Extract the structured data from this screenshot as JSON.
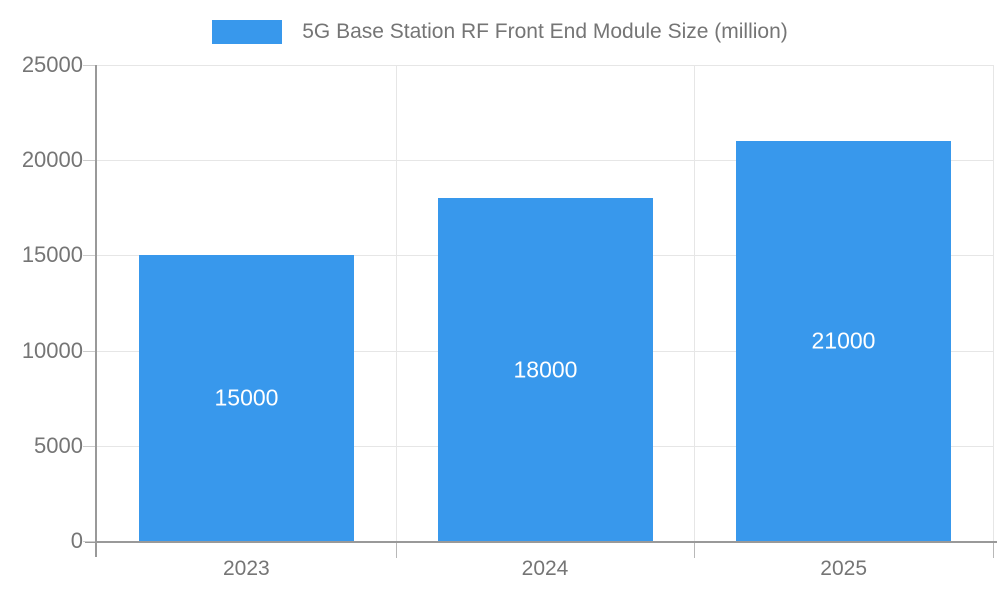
{
  "legend": {
    "label": "5G Base Station RF Front End Module Size (million)"
  },
  "colors": {
    "bar": "#3898EC",
    "axis": "#999999",
    "grid": "#e6e6e6",
    "tick_text": "#757575",
    "bar_label_text": "#ffffff"
  },
  "chart_data": {
    "type": "bar",
    "title": "5G Base Station RF Front End Module Size (million)",
    "categories": [
      "2023",
      "2024",
      "2025"
    ],
    "values": [
      15000,
      18000,
      21000
    ],
    "bar_labels": [
      "15000",
      "18000",
      "21000"
    ],
    "xlabel": "",
    "ylabel": "",
    "ylim": [
      0,
      25000
    ],
    "yticks": [
      0,
      5000,
      10000,
      15000,
      20000,
      25000
    ],
    "ytick_labels": [
      "0",
      "5000",
      "10000",
      "15000",
      "20000",
      "25000"
    ],
    "grid": true,
    "legend_position": "top-center",
    "bar_label_position": "center"
  }
}
